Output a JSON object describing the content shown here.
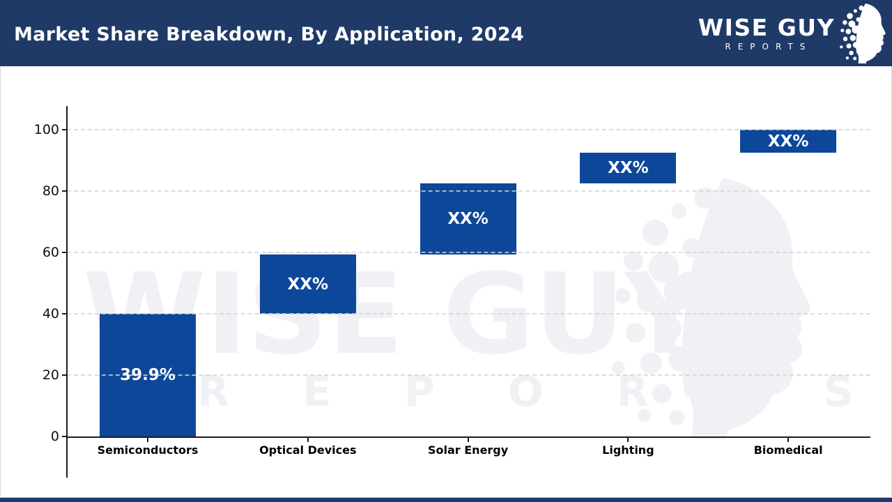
{
  "header": {
    "title": "Market Share Breakdown, By Application, 2024",
    "logo": {
      "line1": "WISE GUY",
      "line2": "REPORTS"
    }
  },
  "watermark": {
    "line1": "WISE GUY",
    "line2": "R E P O R T S"
  },
  "chart_data": {
    "type": "bar",
    "subtype": "waterfall",
    "title": "Market Share Breakdown, By Application, 2024",
    "categories": [
      "Semiconductors",
      "Optical Devices",
      "Solar Energy",
      "Lighting",
      "Biomedical"
    ],
    "series": [
      {
        "name": "Semiconductors",
        "start": 0,
        "end": 39.9,
        "label": "39.9%"
      },
      {
        "name": "Optical Devices",
        "start": 39.9,
        "end": 59.3,
        "label": "XX%"
      },
      {
        "name": "Solar Energy",
        "start": 59.3,
        "end": 82.4,
        "label": "XX%"
      },
      {
        "name": "Lighting",
        "start": 82.4,
        "end": 92.5,
        "label": "XX%"
      },
      {
        "name": "Biomedical",
        "start": 92.5,
        "end": 100,
        "label": "XX%"
      }
    ],
    "yticks": [
      0,
      20,
      40,
      60,
      80,
      100
    ],
    "ylim": [
      0,
      108
    ],
    "grid": "horizontal-dashed",
    "legend": "none",
    "bar_color": "#0d4799",
    "bar_label_color": "#ffffff"
  },
  "colors": {
    "header_bg": "#1f3a67",
    "footer_bg": "#1f3a67",
    "bar": "#0d4799",
    "axis": "#1c1c1c",
    "gridline": "#e0e3e8",
    "watermark": "#f0f1f4",
    "title_text": "#ffffff"
  }
}
